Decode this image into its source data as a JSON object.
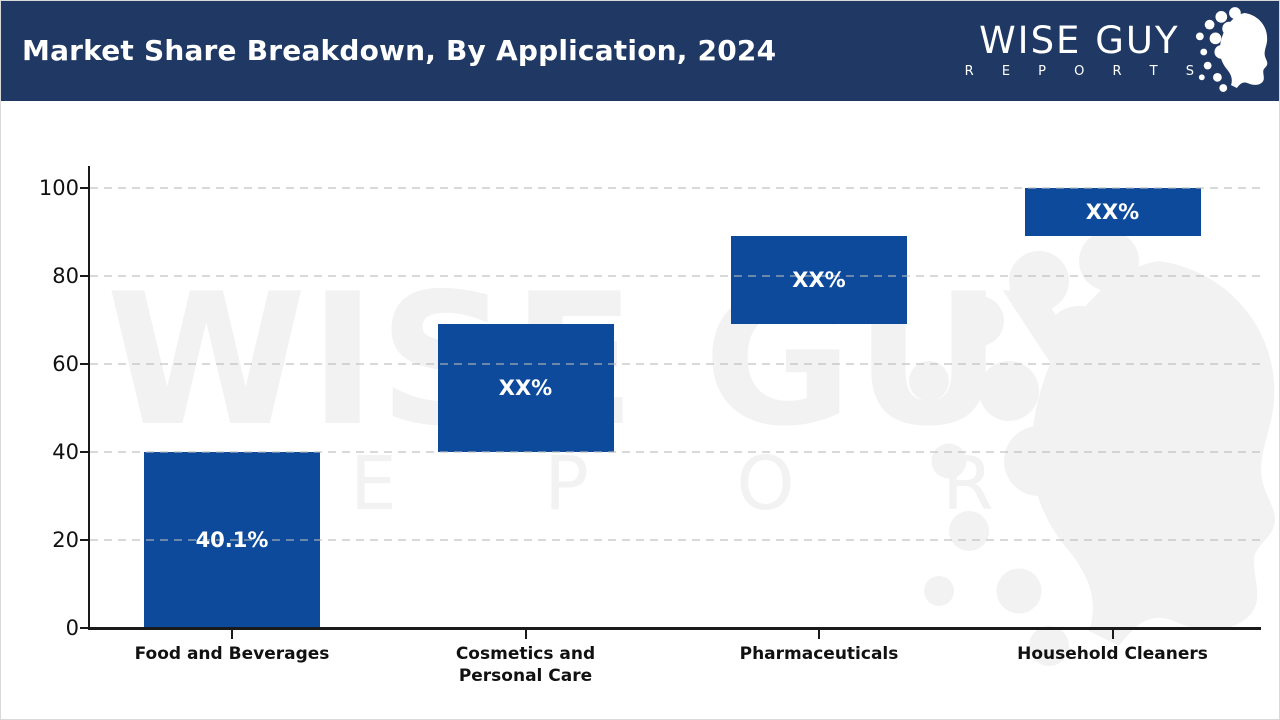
{
  "header": {
    "title": "Market Share Breakdown, By Application, 2024",
    "logo": {
      "name": "WISE GUY",
      "subname": "R E P O R T S"
    }
  },
  "watermark": {
    "text1": "WISE GUY",
    "text2": "R E P O R T S"
  },
  "colors": {
    "header_bg": "#1f3864",
    "bar": "#0d4a9c",
    "axis": "#1a1a1a",
    "grid": "#bababa",
    "bar_label": "#ffffff",
    "watermark": "#f2f2f3"
  },
  "chart_data": {
    "type": "bar",
    "subtype": "floating-waterfall",
    "title": "Market Share Breakdown, By Application, 2024",
    "categories": [
      "Food and Beverages",
      "Cosmetics and\nPersonal Care",
      "Pharmaceuticals",
      "Household Cleaners"
    ],
    "segments": [
      {
        "category": "Food and Beverages",
        "start": 0,
        "end": 40.1,
        "label": "40.1%"
      },
      {
        "category": "Cosmetics and Personal Care",
        "start": 40.1,
        "end": 69.1,
        "label": "XX%"
      },
      {
        "category": "Pharmaceuticals",
        "start": 69.1,
        "end": 89.1,
        "label": "XX%"
      },
      {
        "category": "Household Cleaners",
        "start": 89.1,
        "end": 100,
        "label": "XX%"
      }
    ],
    "yticks": [
      0,
      20,
      40,
      60,
      80,
      100
    ],
    "ylim": [
      0,
      104
    ],
    "xlabel": "",
    "ylabel": "",
    "grid": "horizontal-dashed",
    "legend": "none"
  }
}
